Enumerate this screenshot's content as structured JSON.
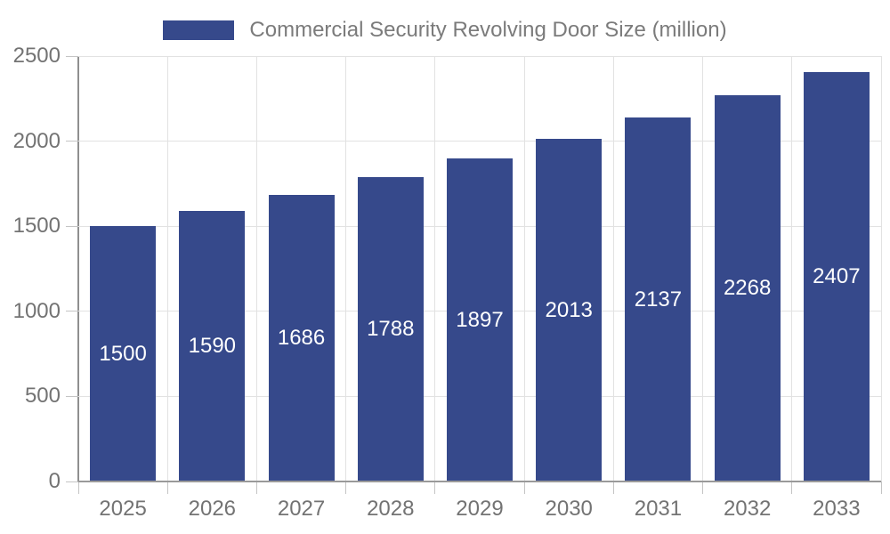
{
  "chart_data": {
    "type": "bar",
    "title": "Commercial Security Revolving Door Size (million)",
    "categories": [
      "2025",
      "2026",
      "2027",
      "2028",
      "2029",
      "2030",
      "2031",
      "2032",
      "2033"
    ],
    "values": [
      1500,
      1590,
      1686,
      1788,
      1897,
      2013,
      2137,
      2268,
      2407
    ],
    "xlabel": "",
    "ylabel": "",
    "ylim": [
      0,
      2500
    ],
    "yticks": [
      0,
      500,
      1000,
      1500,
      2000,
      2500
    ],
    "grid": true,
    "legend_position": "top",
    "bar_color": "#36498B",
    "value_label_color": "#ffffff",
    "axis_text_color": "#737373"
  },
  "legend": {
    "label": "Commercial Security Revolving Door Size (million)"
  }
}
